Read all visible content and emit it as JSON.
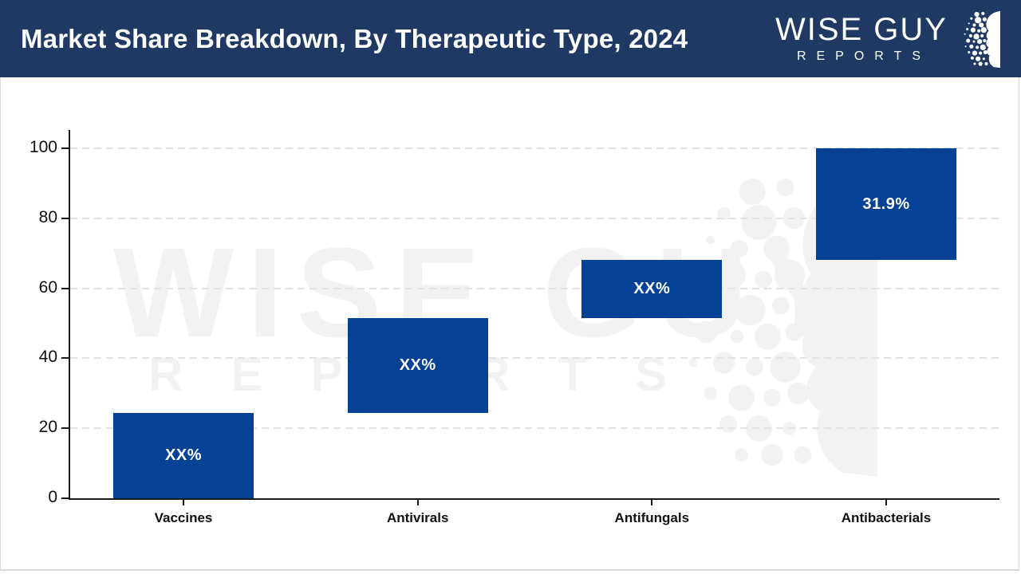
{
  "header": {
    "title": "Market Share Breakdown, By Therapeutic Type, 2024",
    "logo": {
      "brand": "WISE GUY",
      "sub": "REPORTS"
    }
  },
  "watermark": {
    "brand": "WISE GUY",
    "sub": "REPORTS"
  },
  "colors": {
    "header_bg": "#1f3864",
    "bar": "#054296",
    "bar_label": "#ffffff",
    "axis": "#1a1a1a",
    "tick_label": "#111111",
    "gridline": "#e3e3e3",
    "watermark": "#f2f2f2",
    "frame_border": "#d9d9d9"
  },
  "chart_data": {
    "type": "bar",
    "variant": "floating-waterfall",
    "title": "Market Share Breakdown, By Therapeutic Type, 2024",
    "categories": [
      "Vaccines",
      "Antivirals",
      "Antifungals",
      "Antibacterials"
    ],
    "bars": [
      {
        "category": "Vaccines",
        "start": 0,
        "end": 24.4,
        "label": "XX%"
      },
      {
        "category": "Antivirals",
        "start": 24.4,
        "end": 51.4,
        "label": "XX%"
      },
      {
        "category": "Antifungals",
        "start": 51.4,
        "end": 68.1,
        "label": "XX%"
      },
      {
        "category": "Antibacterials",
        "start": 68.1,
        "end": 100,
        "label": "31.9%"
      }
    ],
    "xlabel": "",
    "ylabel": "",
    "yticks": [
      0,
      20,
      40,
      60,
      80,
      100
    ],
    "ylim": [
      0,
      105
    ],
    "grid": "horizontal-dashed",
    "legend": "none"
  }
}
